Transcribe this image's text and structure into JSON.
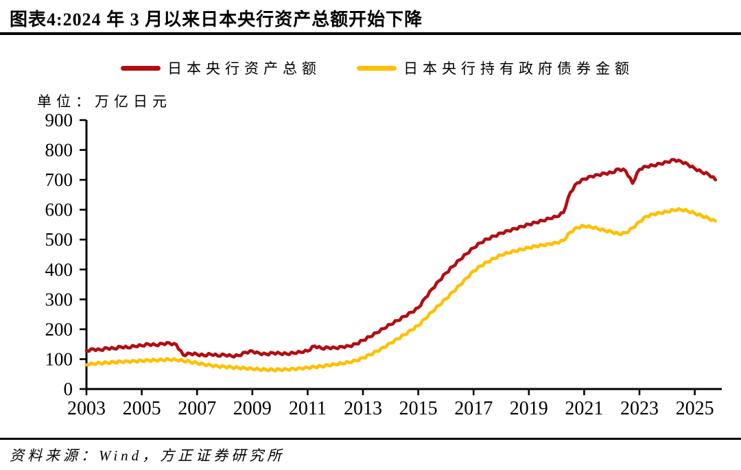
{
  "header": {
    "title": "图表4:2024 年 3 月以来日本央行资产总额开始下降"
  },
  "footer": {
    "source": "资料来源：Wind，方正证券研究所"
  },
  "chart_data": {
    "type": "line",
    "unit_label": "单位：万亿日元",
    "legend_position": "top",
    "grid": false,
    "axis_color": "#000000",
    "ylim": [
      0,
      900
    ],
    "xlim": [
      2003,
      2026
    ],
    "y_tick_values": [
      0,
      100,
      200,
      300,
      400,
      500,
      600,
      700,
      800,
      900
    ],
    "x_tick_labels": [
      "2003",
      "2005",
      "2007",
      "2009",
      "2011",
      "2013",
      "2015",
      "2017",
      "2019",
      "2021",
      "2023",
      "2025"
    ],
    "x_tick_years": [
      2003,
      2005,
      2007,
      2009,
      2011,
      2013,
      2015,
      2017,
      2019,
      2021,
      2023,
      2025
    ],
    "x": [
      2003,
      2003.25,
      2003.5,
      2003.75,
      2004,
      2004.25,
      2004.5,
      2004.75,
      2005,
      2005.25,
      2005.5,
      2005.75,
      2006,
      2006.25,
      2006.5,
      2006.75,
      2007,
      2007.25,
      2007.5,
      2007.75,
      2008,
      2008.25,
      2008.5,
      2008.75,
      2009,
      2009.25,
      2009.5,
      2009.75,
      2010,
      2010.25,
      2010.5,
      2010.75,
      2011,
      2011.25,
      2011.5,
      2011.75,
      2012,
      2012.25,
      2012.5,
      2012.75,
      2013,
      2013.25,
      2013.5,
      2013.75,
      2014,
      2014.25,
      2014.5,
      2014.75,
      2015,
      2015.25,
      2015.5,
      2015.75,
      2016,
      2016.25,
      2016.5,
      2016.75,
      2017,
      2017.25,
      2017.5,
      2017.75,
      2018,
      2018.25,
      2018.5,
      2018.75,
      2019,
      2019.25,
      2019.5,
      2019.75,
      2020,
      2020.25,
      2020.5,
      2020.75,
      2021,
      2021.25,
      2021.5,
      2021.75,
      2022,
      2022.25,
      2022.5,
      2022.75,
      2023,
      2023.25,
      2023.5,
      2023.75,
      2024,
      2024.25,
      2024.5,
      2024.75,
      2025,
      2025.25,
      2025.5,
      2025.75
    ],
    "series": [
      {
        "name": "日本央行资产总额",
        "color": "#B20D12",
        "values": [
          129,
          134,
          131,
          137,
          135,
          141,
          138,
          143,
          145,
          150,
          147,
          152,
          154,
          149,
          114,
          119,
          116,
          112,
          116,
          111,
          114,
          110,
          112,
          123,
          127,
          120,
          117,
          121,
          119,
          117,
          120,
          123,
          127,
          144,
          136,
          139,
          138,
          142,
          144,
          151,
          163,
          175,
          188,
          202,
          216,
          229,
          243,
          257,
          272,
          305,
          335,
          362,
          388,
          410,
          432,
          452,
          472,
          489,
          502,
          512,
          522,
          530,
          537,
          544,
          551,
          557,
          563,
          570,
          576,
          590,
          658,
          690,
          703,
          712,
          717,
          722,
          724,
          736,
          730,
          688,
          735,
          744,
          748,
          754,
          760,
          768,
          762,
          752,
          738,
          726,
          718,
          700
        ]
      },
      {
        "name": "日本央行持有政府债券金额",
        "color": "#FFC000",
        "values": [
          81,
          84,
          86,
          88,
          90,
          92,
          93,
          94,
          95,
          96,
          96,
          97,
          98,
          97,
          94,
          91,
          87,
          83,
          80,
          77,
          75,
          73,
          71,
          69,
          67,
          65,
          64,
          64,
          65,
          66,
          68,
          70,
          72,
          74,
          76,
          79,
          82,
          85,
          89,
          95,
          104,
          115,
          127,
          140,
          154,
          168,
          182,
          197,
          212,
          235,
          258,
          280,
          302,
          325,
          348,
          372,
          395,
          412,
          425,
          437,
          448,
          455,
          461,
          467,
          473,
          478,
          482,
          486,
          490,
          497,
          525,
          540,
          545,
          541,
          536,
          530,
          526,
          519,
          523,
          540,
          560,
          578,
          585,
          589,
          593,
          598,
          600,
          595,
          588,
          580,
          572,
          562
        ]
      }
    ]
  }
}
